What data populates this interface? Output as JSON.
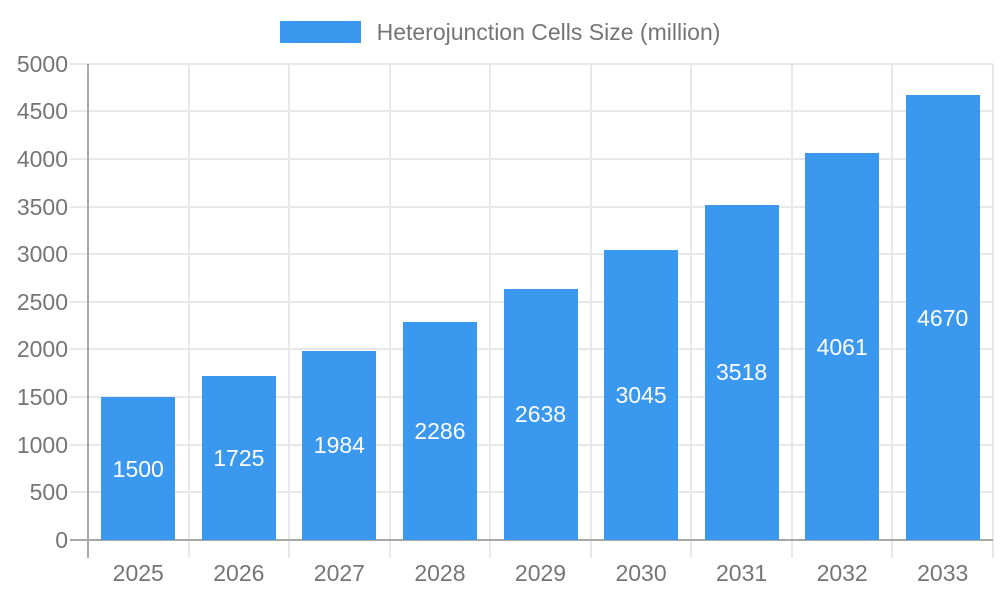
{
  "chart_data": {
    "type": "bar",
    "title": "Heterojunction Cells Size (million)",
    "legend_position": "top-center",
    "categories": [
      "2025",
      "2026",
      "2027",
      "2028",
      "2029",
      "2030",
      "2031",
      "2032",
      "2033"
    ],
    "values": [
      1500,
      1725,
      1984,
      2286,
      2638,
      3045,
      3518,
      4061,
      4670
    ],
    "bar_labels": [
      "1500",
      "1725",
      "1984",
      "2286",
      "2638",
      "3045",
      "3518",
      "4061",
      "4670"
    ],
    "bar_labels_inside_centered": true,
    "xlabel": "",
    "ylabel": "",
    "ylim": [
      0,
      5000
    ],
    "y_ticks": [
      0,
      500,
      1000,
      1500,
      2000,
      2500,
      3000,
      3500,
      4000,
      4500,
      5000
    ],
    "grid": true,
    "colors": {
      "bar": "#3a99ef",
      "grid_line": "#e8e8e8",
      "axis_line": "#a8a8a8",
      "tick_label": "#757575",
      "legend_text": "#757575",
      "bar_label": "#ffffff",
      "background": "#ffffff"
    }
  }
}
